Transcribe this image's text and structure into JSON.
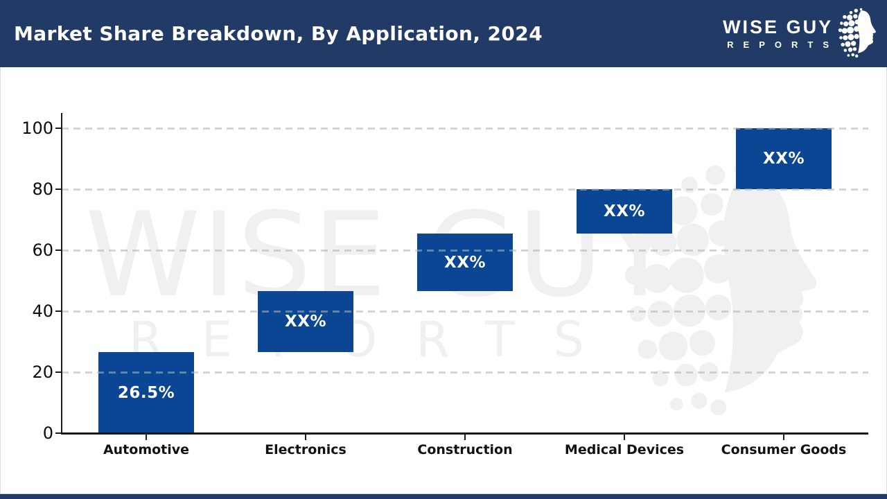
{
  "header": {
    "title": "Market Share Breakdown, By Application, 2024",
    "logo": {
      "line1": "WISE GUY",
      "line2": "REPORTS"
    }
  },
  "watermark": {
    "line1": "WISE GUY",
    "line2": "REPORTS"
  },
  "chart_data": {
    "type": "bar",
    "subtype": "floating-segment-waterfall",
    "title": "Market Share Breakdown, By Application, 2024",
    "categories": [
      "Automotive",
      "Electronics",
      "Construction",
      "Medical Devices",
      "Consumer Goods"
    ],
    "series": [
      {
        "name": "Market share (%)",
        "segments": [
          {
            "category": "Automotive",
            "start": 0,
            "end": 26.5,
            "label": "26.5%"
          },
          {
            "category": "Electronics",
            "start": 26.5,
            "end": 46.5,
            "label": "XX%"
          },
          {
            "category": "Construction",
            "start": 46.5,
            "end": 65.5,
            "label": "XX%"
          },
          {
            "category": "Medical Devices",
            "start": 65.5,
            "end": 80,
            "label": "XX%"
          },
          {
            "category": "Consumer Goods",
            "start": 80,
            "end": 100,
            "label": "XX%"
          }
        ]
      }
    ],
    "xlabel": "",
    "ylabel": "",
    "ylim": [
      0,
      105
    ],
    "yticks": [
      0,
      20,
      40,
      60,
      80,
      100
    ],
    "grid": "horizontal-dashed",
    "legend_position": "none",
    "bar_color": "#0a4694",
    "bar_label_color": "#ffffff"
  },
  "colors": {
    "header_bg": "#213a66",
    "footer_bg": "#213a66",
    "title_text": "#ffffff",
    "watermark": "#f0f0f2",
    "grid": "#bbbbbb",
    "axis": "#1a1a1a"
  }
}
